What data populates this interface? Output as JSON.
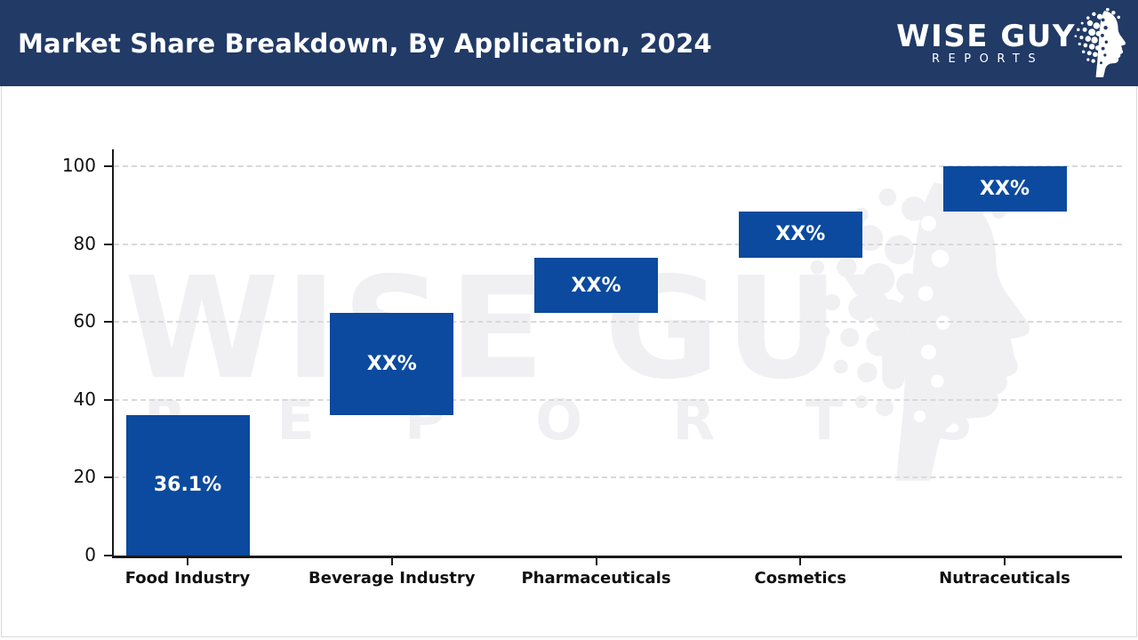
{
  "header": {
    "title": "Market Share Breakdown, By Application, 2024",
    "logo": {
      "wordmark": "WISE GUY",
      "subtext": "REPORTS"
    }
  },
  "watermark": {
    "wordmark": "WISE GUY",
    "subtext": "R E P O R T S"
  },
  "colors": {
    "header_bg": "#213A66",
    "bar_blue": "#0B4A9E",
    "axis": "#1a1a1a",
    "grid": "#d9d9d9",
    "watermark_gray": "#f0f0f3",
    "label_text": "#111111",
    "bar_label": "#ffffff"
  },
  "chart_data": {
    "type": "bar",
    "subtype": "waterfall",
    "title": "Market Share Breakdown, By Application, 2024",
    "unit": "%",
    "categories": [
      "Food Industry",
      "Beverage Industry",
      "Pharmaceuticals",
      "Cosmetics",
      "Nutraceuticals"
    ],
    "segments": [
      {
        "category": "Food Industry",
        "start": 0,
        "end": 36.1,
        "label": "36.1%"
      },
      {
        "category": "Beverage Industry",
        "start": 36.1,
        "end": 62.3,
        "label": "XX%"
      },
      {
        "category": "Pharmaceuticals",
        "start": 62.3,
        "end": 76.5,
        "label": "XX%"
      },
      {
        "category": "Cosmetics",
        "start": 76.5,
        "end": 88.4,
        "label": "XX%"
      },
      {
        "category": "Nutraceuticals",
        "start": 88.4,
        "end": 100,
        "label": "XX%"
      }
    ],
    "yticks": [
      0,
      20,
      40,
      60,
      80,
      100
    ],
    "ylim": [
      0,
      104
    ],
    "xlabel": "",
    "ylabel": "",
    "grid": "horizontal-dashed",
    "legend": false,
    "bar_color": "#0B4A9E",
    "value_label_color": "#ffffff"
  }
}
